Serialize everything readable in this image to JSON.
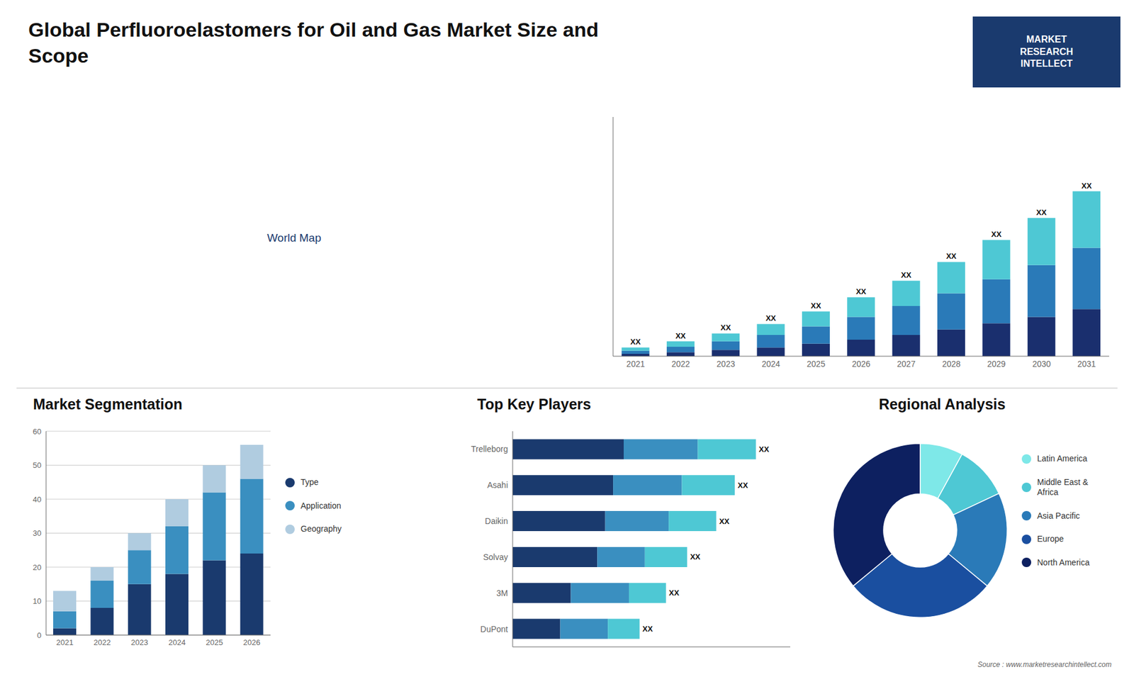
{
  "chart_data": [
    {
      "type": "bar",
      "title": "Global Perfluoroelastomers for Oil and Gas Market Size and\nScope",
      "stacked": true,
      "categories": [
        "2021",
        "2022",
        "2023",
        "2024",
        "2025",
        "2026",
        "2027",
        "2028",
        "2029",
        "2030",
        "2031"
      ],
      "series": [
        {
          "color": "#1a2f6e",
          "values": [
            1.5,
            2.5,
            4.0,
            5.5,
            8.0,
            10.5,
            13.5,
            17.0,
            21.0,
            25.0,
            30.0
          ]
        },
        {
          "color": "#2a7ab8",
          "values": [
            2.0,
            3.5,
            5.5,
            8.0,
            11.0,
            14.5,
            18.5,
            23.0,
            28.0,
            33.0,
            39.0
          ]
        },
        {
          "color": "#4ec8d4",
          "values": [
            2.0,
            3.5,
            5.0,
            7.0,
            9.5,
            12.5,
            16.0,
            20.0,
            25.0,
            30.0,
            36.0
          ],
          "value_labels": [
            "XX",
            "XX",
            "XX",
            "XX",
            "XX",
            "XX",
            "XX",
            "XX",
            "XX",
            "XX",
            "XX"
          ]
        }
      ],
      "ylim": [
        0,
        152.25
      ],
      "tick_labels": "x",
      "annotations": [
        "MARKET\nRESEARCH\nINTELLECT",
        "Source : www.marketresearchintellect.com"
      ]
    },
    {
      "type": "map",
      "annotations": [
        "World Map"
      ]
    },
    {
      "type": "bar",
      "title": "Market Segmentation",
      "stacked": true,
      "categories": [
        "2021",
        "2022",
        "2023",
        "2024",
        "2025",
        "2026"
      ],
      "series": [
        {
          "name": "Type",
          "color": "#1a3a6e",
          "values": [
            2,
            8,
            15,
            18,
            22,
            24
          ]
        },
        {
          "name": "Application",
          "color": "#3a8fc0",
          "values": [
            5,
            8,
            10,
            14,
            20,
            22
          ]
        },
        {
          "name": "Geography",
          "color": "#b0cce0",
          "values": [
            6,
            4,
            5,
            8,
            8,
            10
          ]
        }
      ],
      "ylim": [
        0,
        60
      ],
      "yticks": [
        0,
        10,
        20,
        30,
        40,
        50,
        60
      ],
      "grid": true,
      "legend": "right"
    },
    {
      "type": "bar",
      "title": "Top Key Players",
      "stacked": true,
      "orientation": "horizontal",
      "categories": [
        "Trelleborg",
        "Asahi",
        "Daikin",
        "Solvay",
        "3M",
        "DuPont"
      ],
      "series": [
        {
          "color": "#1a3a6e",
          "values": [
            0.42,
            0.38,
            0.35,
            0.32,
            0.22,
            0.18
          ]
        },
        {
          "color": "#3a8fc0",
          "values": [
            0.28,
            0.26,
            0.24,
            0.18,
            0.22,
            0.18
          ]
        },
        {
          "color": "#4ec8d4",
          "values": [
            0.22,
            0.2,
            0.18,
            0.16,
            0.14,
            0.12
          ],
          "value_labels": [
            "XX",
            "XX",
            "XX",
            "XX",
            "XX",
            "XX"
          ]
        }
      ],
      "xlim": [
        0,
        1.05
      ],
      "tick_labels": "y"
    },
    {
      "type": "pie",
      "title": "Regional Analysis",
      "categories": [
        "Latin America",
        "Middle East &\nAfrica",
        "Asia Pacific",
        "Europe",
        "North America"
      ],
      "values": [
        8,
        10,
        18,
        28,
        36
      ],
      "colors": [
        "#7ee8e8",
        "#4ec8d4",
        "#2a7ab8",
        "#1a4fa0",
        "#0d2060"
      ],
      "legend": "right"
    }
  ]
}
